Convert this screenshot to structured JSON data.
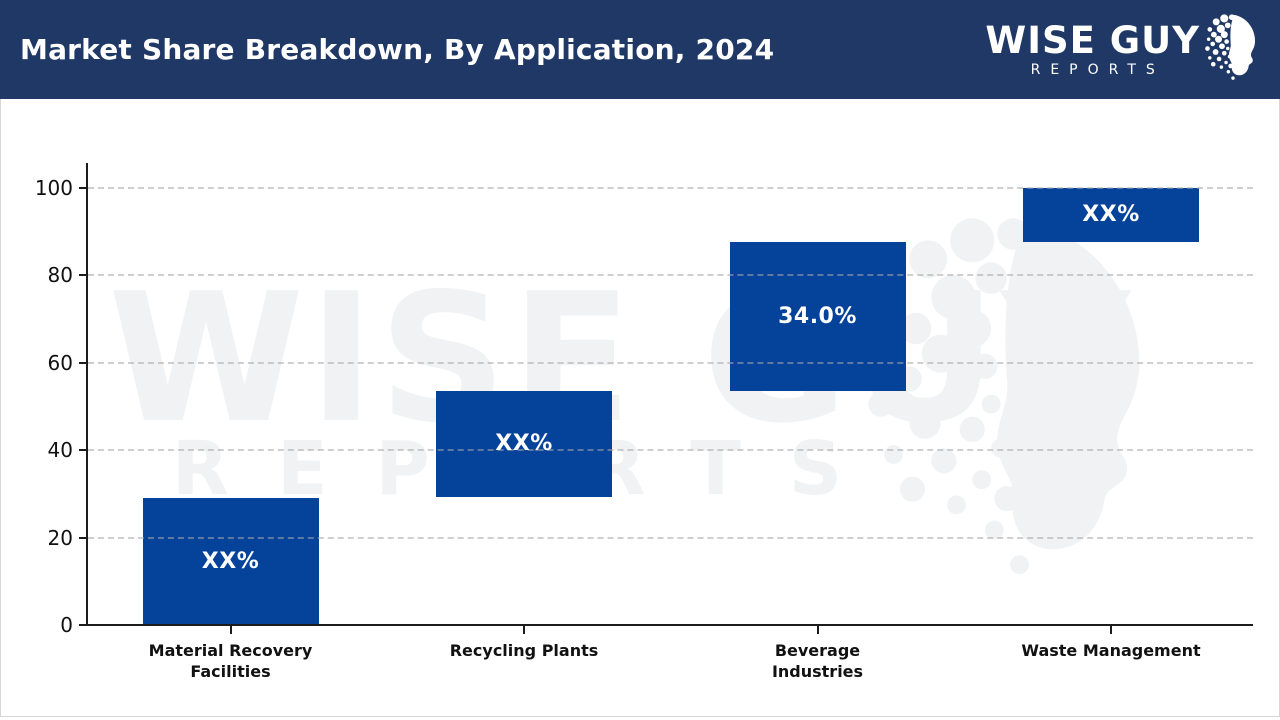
{
  "header": {
    "title": "Market Share Breakdown, By Application, 2024",
    "logo": {
      "line1": "WISE GUY",
      "line2": "REPORTS"
    }
  },
  "watermark": {
    "line1": "WISE GUY",
    "line2": "REPORTS"
  },
  "colors": {
    "header_bg": "#1f3866",
    "bar": "#05439b",
    "bar_label": "#ffffff",
    "axis": "#1c1c1c",
    "grid": "#c8c8c8",
    "watermark": "#f1f2f4",
    "frame_border": "#d6d6d6"
  },
  "chart_data": {
    "type": "bar",
    "variant": "floating-waterfall",
    "title": "Market Share Breakdown, By Application, 2024",
    "categories": [
      "Material Recovery\nFacilities",
      "Recycling Plants",
      "Beverage\nIndustries",
      "Waste Management"
    ],
    "segments": [
      {
        "category": "Material Recovery Facilities",
        "start": 0,
        "end": 29,
        "label": "XX%"
      },
      {
        "category": "Recycling Plants",
        "start": 29.3,
        "end": 53.5,
        "label": "XX%"
      },
      {
        "category": "Beverage Industries",
        "start": 53.5,
        "end": 87.5,
        "label": "34.0%"
      },
      {
        "category": "Waste Management",
        "start": 87.5,
        "end": 100,
        "label": "XX%"
      }
    ],
    "yticks": [
      0,
      20,
      40,
      60,
      80,
      100
    ],
    "ylim": [
      0,
      105.5
    ],
    "xlabel": "",
    "ylabel": "",
    "grid": true,
    "grid_style": "dashed",
    "legend": null
  }
}
